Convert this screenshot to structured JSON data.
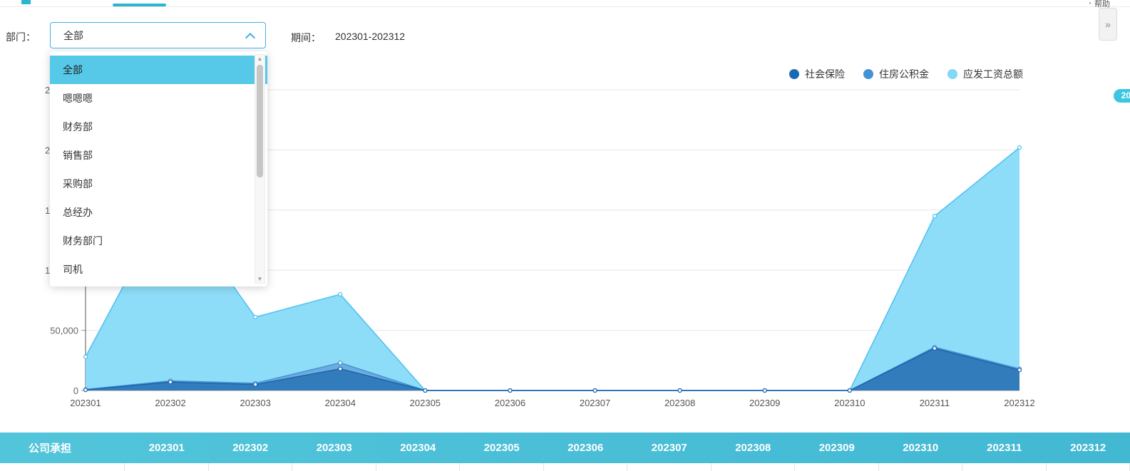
{
  "topbar": {
    "help_label": "帮助",
    "help_icon": "◔",
    "expand_icon": "»"
  },
  "filters": {
    "department_label": "部门：",
    "department_value": "全部",
    "period_label": "期间：",
    "period_value": "202301-202312"
  },
  "dropdown": {
    "selected_index": 0,
    "items": [
      "全部",
      "嗯嗯嗯",
      "财务部",
      "销售部",
      "采购部",
      "总经办",
      "财务部门",
      "司机"
    ],
    "scroll_up_icon": "▲",
    "scroll_down_icon": "▼"
  },
  "right_badge": "20",
  "chart_data": {
    "type": "area",
    "title": "",
    "xlabel": "",
    "ylabel": "",
    "ylim": [
      0,
      250000
    ],
    "y_ticks": [
      "0",
      "50,000",
      "100,000",
      "150,000",
      "200,000",
      "250,000"
    ],
    "grid": true,
    "legend_position": "top-right",
    "categories": [
      "202301",
      "202302",
      "202303",
      "202304",
      "202305",
      "202306",
      "202307",
      "202308",
      "202309",
      "202310",
      "202311",
      "202312"
    ],
    "series": [
      {
        "name": "社会保险",
        "dot": "#1a6ab2",
        "stroke": "#1a64ad",
        "fill": "#2e77b8",
        "fill_opacity": 0.9,
        "values": [
          500,
          7000,
          5000,
          18000,
          0,
          0,
          0,
          0,
          0,
          0,
          35000,
          17000
        ]
      },
      {
        "name": "住房公积金",
        "dot": "#4292d4",
        "stroke": "#4a90d0",
        "fill": "#64a5da",
        "fill_opacity": 0.85,
        "values": [
          800,
          8000,
          6000,
          23000,
          0,
          0,
          0,
          0,
          0,
          0,
          36000,
          18000
        ]
      },
      {
        "name": "应发工资总额",
        "dot": "#83d7f7",
        "stroke": "#4fc0f0",
        "fill": "#87daf8",
        "fill_opacity": 0.95,
        "values": [
          28000,
          160000,
          61000,
          80000,
          0,
          0,
          0,
          0,
          0,
          0,
          145000,
          202000
        ]
      }
    ]
  },
  "table": {
    "header_col": "公司承担",
    "columns": [
      "202301",
      "202302",
      "202303",
      "202304",
      "202305",
      "202306",
      "202307",
      "202308",
      "202309",
      "202310",
      "202311",
      "202312"
    ]
  }
}
